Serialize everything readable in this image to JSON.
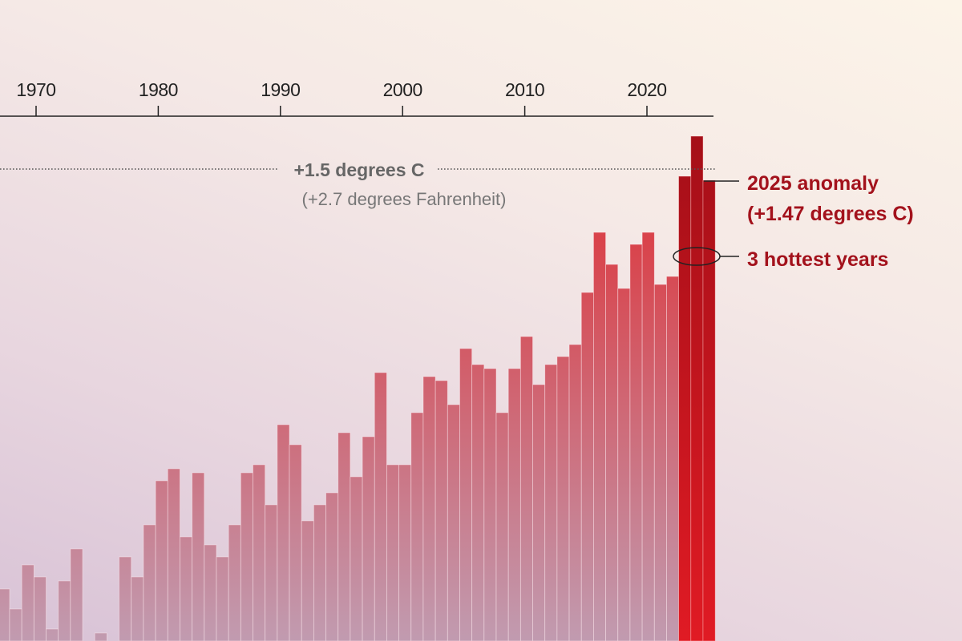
{
  "chart_data": {
    "type": "bar",
    "xlabel": "",
    "ylabel": "",
    "x": [
      1967,
      1968,
      1969,
      1970,
      1971,
      1972,
      1973,
      1974,
      1975,
      1976,
      1977,
      1978,
      1979,
      1980,
      1981,
      1982,
      1983,
      1984,
      1985,
      1986,
      1987,
      1988,
      1989,
      1990,
      1991,
      1992,
      1993,
      1994,
      1995,
      1996,
      1997,
      1998,
      1999,
      2000,
      2001,
      2002,
      2003,
      2004,
      2005,
      2006,
      2007,
      2008,
      2009,
      2010,
      2011,
      2012,
      2013,
      2014,
      2015,
      2016,
      2017,
      2018,
      2019,
      2020,
      2021,
      2022,
      2023,
      2024,
      2025
    ],
    "values": [
      0.45,
      0.4,
      0.51,
      0.48,
      0.35,
      0.47,
      0.55,
      0.3,
      0.34,
      0.29,
      0.53,
      0.48,
      0.61,
      0.72,
      0.75,
      0.58,
      0.74,
      0.56,
      0.53,
      0.61,
      0.74,
      0.76,
      0.66,
      0.86,
      0.81,
      0.62,
      0.66,
      0.69,
      0.84,
      0.73,
      0.83,
      0.99,
      0.76,
      0.76,
      0.89,
      0.98,
      0.97,
      0.91,
      1.05,
      1.01,
      1.0,
      0.89,
      1.0,
      1.08,
      0.96,
      1.01,
      1.03,
      1.06,
      1.19,
      1.34,
      1.26,
      1.2,
      1.31,
      1.34,
      1.21,
      1.23,
      1.48,
      1.58,
      1.47
    ],
    "x_ticks": [
      "1970",
      "1980",
      "1990",
      "2000",
      "2010",
      "2020"
    ],
    "x_tick_values": [
      1970,
      1980,
      1990,
      2000,
      2010,
      2020
    ],
    "axis_position": "top",
    "ylim": [
      0.32,
      1.9
    ],
    "grid": false,
    "highlight_years": [
      2023,
      2024,
      2025
    ],
    "colors": {
      "bar_top": "#d9434b",
      "bar_bottom": "#c19bb0",
      "highlight_top": "#a50f18",
      "highlight_bottom": "#e01b24",
      "annotation": "#a3121c"
    },
    "reference_line": {
      "value": 1.5,
      "label": "+1.5 degrees C",
      "sublabel": "(+2.7 degrees Fahrenheit)"
    },
    "annotations": [
      {
        "year": 2025,
        "lines": [
          "2025 anomaly",
          "(+1.47 degrees C)"
        ]
      },
      {
        "years": [
          2023,
          2024,
          2025
        ],
        "lines": [
          "3 hottest years"
        ]
      }
    ]
  }
}
